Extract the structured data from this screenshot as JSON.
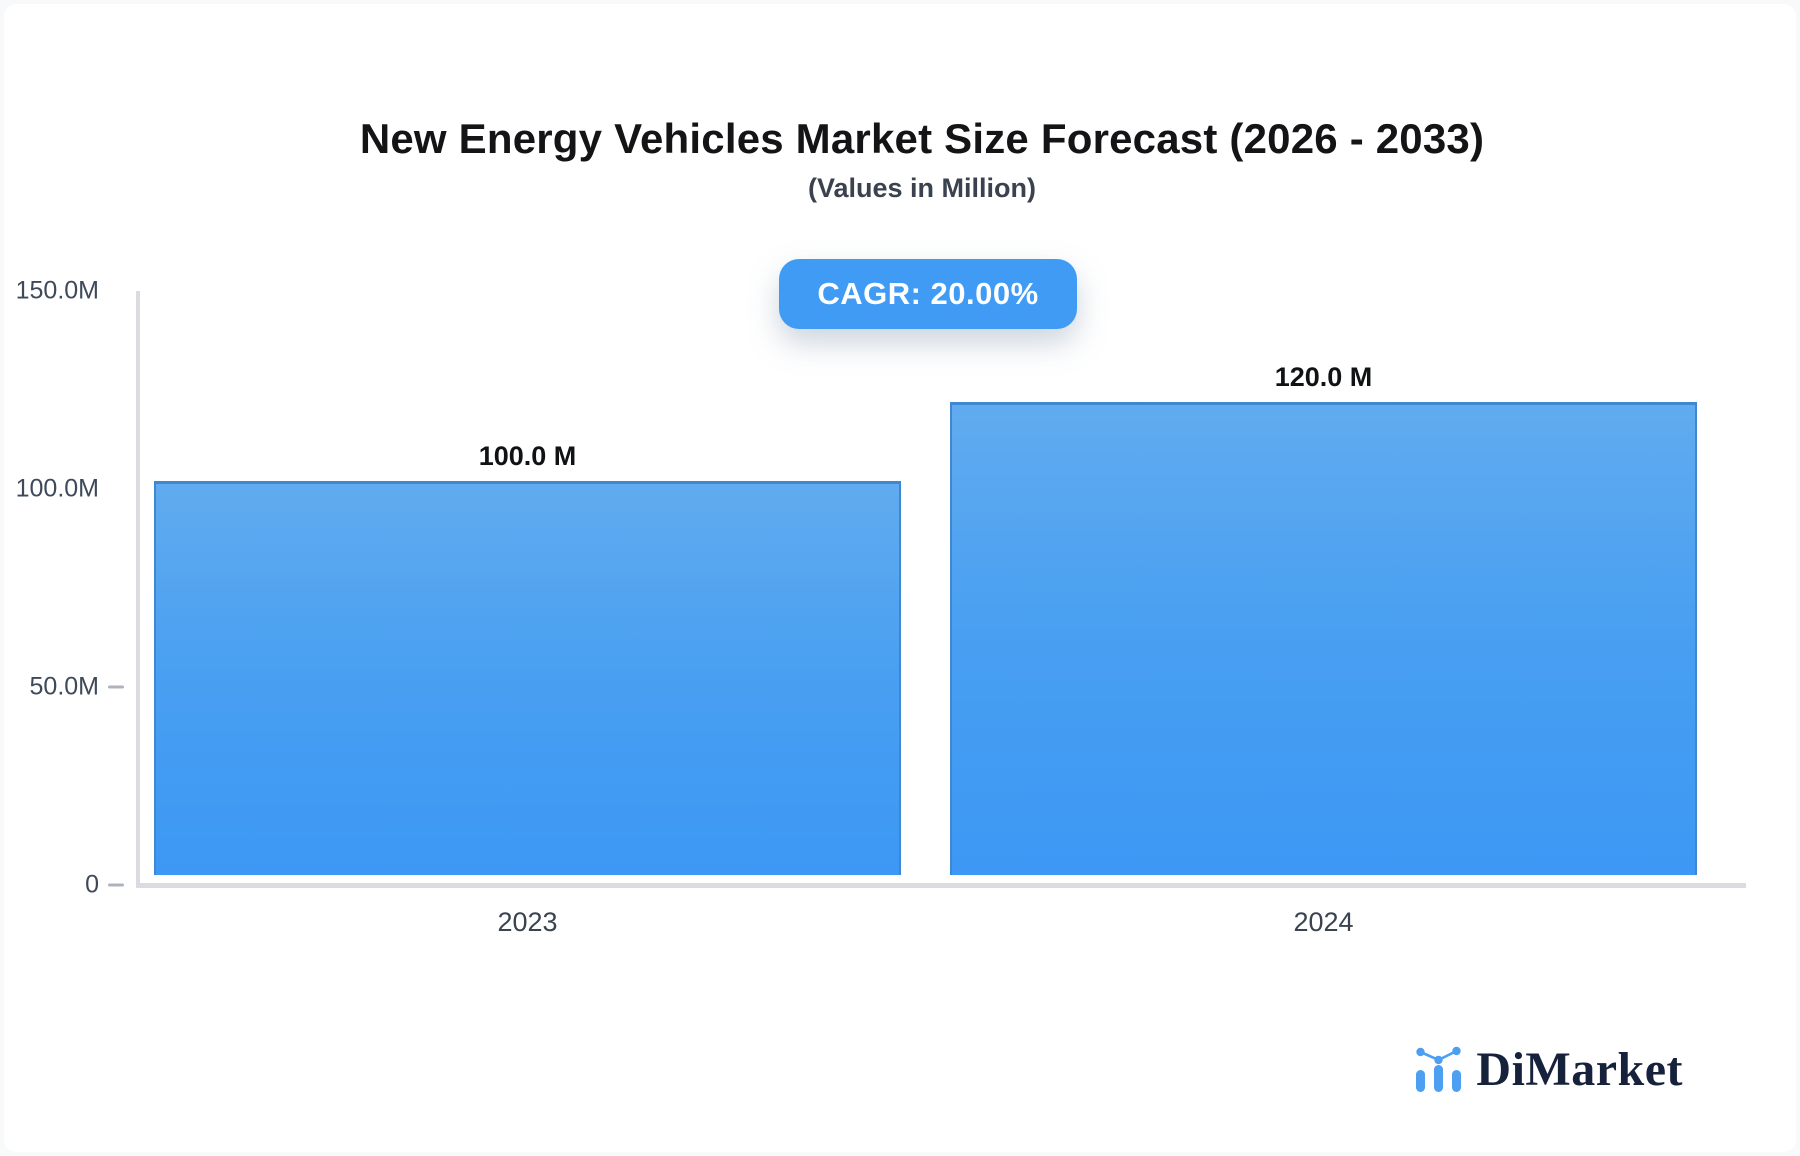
{
  "page": {
    "title": "New Energy Vehicles Market Size Forecast (2026 - 2033)",
    "subtitle": "(Values in Million)",
    "cagr_badge_label": "CAGR: 20.00%"
  },
  "chart_data": {
    "type": "bar",
    "title": "New Energy Vehicles Market Size Forecast (2026 - 2033)",
    "subtitle": "(Values in Million)",
    "unit": "Million",
    "cagr_percent": 20.0,
    "categories": [
      "2023",
      "2024"
    ],
    "values": [
      100.0,
      120.0
    ],
    "value_labels": [
      "100.0 M",
      "120.0 M"
    ],
    "ylim": [
      0,
      150
    ],
    "grid": false,
    "legend_position": "none",
    "y_ticks": [
      {
        "value": 150,
        "label": "150.0M",
        "has_dash": false
      },
      {
        "value": 100,
        "label": "100.0M",
        "has_dash": false
      },
      {
        "value": 50,
        "label": "50.0M",
        "has_dash": true
      },
      {
        "value": 0,
        "label": "0",
        "has_dash": true
      }
    ],
    "colors": {
      "bar_gradient_top": "#61abef",
      "bar_gradient_bottom": "#3c98f4",
      "bar_border": "#3f87d1",
      "badge_background": "#3f9bf4",
      "axis_line": "#dadce1",
      "title_text": "#141417",
      "axis_label_text": "#3e4a5a"
    }
  },
  "branding": {
    "logo_text": "DiMarket",
    "logo_icon": "bar-chart-with-trend-dots-icon",
    "logo_color": "#4c9ff1",
    "logo_text_color": "#16213b"
  }
}
